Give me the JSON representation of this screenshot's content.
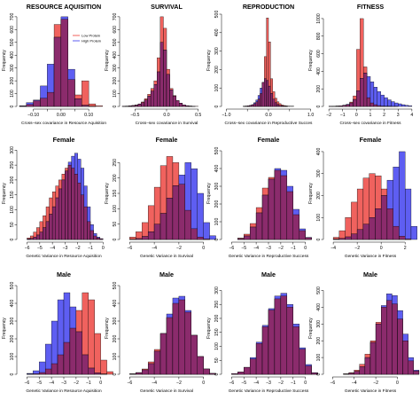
{
  "colors": {
    "low": "#f0625e",
    "high": "#5e5ef2",
    "overlap": "#8b2b6c"
  },
  "legend": {
    "low": "Low Protein",
    "high": "High Protein"
  },
  "chart_data": [
    {
      "type": "bar",
      "title": "RESOURCE AQUISITION",
      "xlabel": "Cross–sex covariance in Resource Aquisition",
      "ylabel": "Frequency",
      "xlim": [
        -0.15,
        0.17
      ],
      "xticks": [
        -0.1,
        -0.05,
        0.0,
        0.05,
        0.1
      ],
      "xtick_labels": [
        "−0.10",
        "",
        "0.00",
        "",
        "0.10"
      ],
      "ylim": [
        0,
        720
      ],
      "yticks": [
        0,
        100,
        200,
        300,
        400,
        500,
        600,
        700
      ],
      "bin_start": -0.15,
      "bin_width": 0.025,
      "series": [
        {
          "name": "Low Protein",
          "values": [
            3,
            15,
            45,
            65,
            110,
            640,
            680,
            210,
            90,
            200,
            20,
            5
          ]
        },
        {
          "name": "High Protein",
          "values": [
            5,
            30,
            50,
            160,
            330,
            540,
            700,
            290,
            60,
            10,
            2,
            0
          ]
        }
      ]
    },
    {
      "type": "bar",
      "title": "SURVIVAL",
      "xlabel": "Cross–sex covariance in Survival",
      "ylabel": "Frequency",
      "xlim": [
        -0.7,
        0.7
      ],
      "xticks": [
        -0.5,
        0,
        0.5
      ],
      "xtick_labels": [
        "−0.5",
        "0.0",
        "0.5"
      ],
      "ylim": [
        0,
        720
      ],
      "yticks": [
        0,
        100,
        200,
        300,
        400,
        500,
        600,
        700
      ],
      "bin_start": -0.7,
      "bin_width": 0.05,
      "series": [
        {
          "name": "Low Protein",
          "values": [
            2,
            3,
            5,
            8,
            12,
            20,
            35,
            60,
            95,
            140,
            200,
            380,
            700,
            610,
            290,
            140,
            85,
            45,
            25,
            12,
            6,
            3,
            2,
            1,
            0,
            0,
            0,
            0
          ]
        },
        {
          "name": "High Protein",
          "values": [
            1,
            2,
            4,
            6,
            10,
            18,
            30,
            50,
            80,
            120,
            170,
            270,
            500,
            440,
            250,
            130,
            80,
            45,
            25,
            12,
            6,
            3,
            1,
            0,
            0,
            0,
            0,
            0
          ]
        }
      ]
    },
    {
      "type": "bar",
      "title": "REPRODUCTION",
      "xlabel": "Cross–sex covariance in Reproductive Succes",
      "ylabel": "Frequency",
      "xlim": [
        -1.05,
        1.05
      ],
      "xticks": [
        -1,
        -0.5,
        0,
        0.5,
        1
      ],
      "xtick_labels": [
        "−1.0",
        "",
        "0.0",
        "",
        "1.0"
      ],
      "ylim": [
        0,
        500
      ],
      "yticks": [
        0,
        100,
        200,
        300,
        400,
        500
      ],
      "bin_start": -0.6,
      "bin_width": 0.05,
      "series": [
        {
          "name": "Low Protein",
          "values": [
            1,
            2,
            3,
            5,
            8,
            15,
            25,
            40,
            70,
            130,
            270,
            480,
            350,
            150,
            80,
            45,
            25,
            15,
            8,
            5,
            3,
            2,
            1,
            1
          ]
        },
        {
          "name": "High Protein",
          "values": [
            1,
            2,
            4,
            6,
            10,
            20,
            35,
            60,
            100,
            130,
            150,
            140,
            110,
            70,
            40,
            20,
            10,
            5,
            3,
            2,
            1,
            0,
            0,
            0
          ]
        }
      ]
    },
    {
      "type": "bar",
      "title": "FITNESS",
      "xlabel": "Cross–sex covariance in Fitness",
      "ylabel": "Frequency",
      "xlim": [
        -2.2,
        4.2
      ],
      "xticks": [
        -2,
        -1,
        0,
        1,
        2,
        3,
        4
      ],
      "xtick_labels": [
        "−2",
        "−1",
        "0",
        "1",
        "2",
        "3",
        "4"
      ],
      "ylim": [
        0,
        1050
      ],
      "yticks": [
        0,
        200,
        400,
        600,
        800,
        1000
      ],
      "bin_start": -2,
      "bin_width": 0.25,
      "series": [
        {
          "name": "Low Protein",
          "values": [
            2,
            3,
            5,
            8,
            12,
            20,
            50,
            120,
            650,
            1000,
            450,
            100,
            40,
            20,
            10,
            5,
            3,
            2,
            1,
            1,
            0,
            0,
            0,
            0
          ]
        },
        {
          "name": "High Protein",
          "values": [
            1,
            2,
            4,
            8,
            15,
            25,
            40,
            80,
            180,
            320,
            380,
            340,
            280,
            220,
            170,
            130,
            100,
            75,
            55,
            40,
            30,
            20,
            12,
            8
          ]
        }
      ]
    },
    {
      "type": "bar",
      "title": "Female",
      "xlabel": "Genetic Variance in Resource Aquisition",
      "ylabel": "Frequency",
      "xlim": [
        -6.6,
        0.4
      ],
      "xticks": [
        -6,
        -5,
        -4,
        -3,
        -2,
        -1,
        0
      ],
      "xtick_labels": [
        "−6",
        "−5",
        "−4",
        "−3",
        "−2",
        "−1",
        "0"
      ],
      "ylim": [
        0,
        310
      ],
      "yticks": [
        0,
        50,
        100,
        150,
        200,
        250,
        300
      ],
      "bin_start": -6,
      "bin_width": 0.25,
      "series": [
        {
          "name": "Low Protein",
          "values": [
            5,
            12,
            25,
            40,
            60,
            80,
            110,
            140,
            160,
            180,
            200,
            220,
            240,
            250,
            240,
            220,
            190,
            150,
            110,
            60,
            30,
            12,
            5,
            2
          ]
        },
        {
          "name": "High Protein",
          "values": [
            2,
            4,
            8,
            15,
            25,
            40,
            60,
            85,
            110,
            140,
            170,
            200,
            230,
            260,
            280,
            290,
            270,
            240,
            180,
            110,
            50,
            20,
            8,
            3
          ]
        }
      ]
    },
    {
      "type": "bar",
      "title": "Female",
      "xlabel": "Genetic Variance in Survival",
      "ylabel": "Frequency",
      "xlim": [
        -6.6,
        0.6
      ],
      "xticks": [
        -6,
        -4,
        -2,
        0
      ],
      "xtick_labels": [
        "−6",
        "−4",
        "−2",
        "0"
      ],
      "ylim": [
        0,
        300
      ],
      "yticks": [
        0,
        50,
        100,
        150,
        200,
        250
      ],
      "bin_start": -6,
      "bin_width": 0.5,
      "series": [
        {
          "name": "Low Protein",
          "values": [
            8,
            25,
            55,
            110,
            170,
            240,
            270,
            250,
            180,
            95,
            35,
            8,
            2,
            0
          ]
        },
        {
          "name": "High Protein",
          "values": [
            1,
            3,
            10,
            25,
            50,
            85,
            135,
            175,
            210,
            250,
            230,
            150,
            55,
            12
          ]
        }
      ]
    },
    {
      "type": "bar",
      "title": "Female",
      "xlabel": "Genetic Variance in Reproductive Success",
      "ylabel": "Frequency",
      "xlim": [
        -6.6,
        0.6
      ],
      "xticks": [
        -6,
        -5,
        -4,
        -3,
        -2,
        -1,
        0
      ],
      "xtick_labels": [
        "−6",
        "−5",
        "−4",
        "−3",
        "−2",
        "−1",
        "0"
      ],
      "ylim": [
        0,
        520
      ],
      "yticks": [
        0,
        100,
        200,
        300,
        400,
        500
      ],
      "bin_start": -5.5,
      "bin_width": 0.5,
      "series": [
        {
          "name": "Low Protein",
          "values": [
            8,
            30,
            90,
            180,
            290,
            350,
            390,
            360,
            270,
            140,
            50,
            10
          ]
        },
        {
          "name": "High Protein",
          "values": [
            5,
            20,
            70,
            150,
            250,
            340,
            400,
            390,
            300,
            170,
            60,
            12
          ]
        }
      ]
    },
    {
      "type": "bar",
      "title": "Female",
      "xlabel": "Genetic Variance in Fitness",
      "ylabel": "Frequency",
      "xlim": [
        -4.6,
        2.8
      ],
      "xticks": [
        -4,
        -2,
        0,
        2
      ],
      "xtick_labels": [
        "−4",
        "−2",
        "0",
        "2"
      ],
      "ylim": [
        0,
        420
      ],
      "yticks": [
        0,
        100,
        200,
        300,
        400
      ],
      "bin_start": -4,
      "bin_width": 0.5,
      "series": [
        {
          "name": "Low Protein",
          "values": [
            10,
            40,
            100,
            170,
            230,
            280,
            300,
            290,
            230,
            140,
            60,
            15,
            3,
            0
          ]
        },
        {
          "name": "High Protein",
          "values": [
            2,
            5,
            12,
            25,
            45,
            70,
            100,
            140,
            200,
            270,
            330,
            400,
            230,
            60
          ]
        }
      ]
    },
    {
      "type": "bar",
      "title": "Male",
      "xlabel": "Genetic Variance in Resource Aquisition",
      "ylabel": "Frequency",
      "xlim": [
        -6.6,
        0.6
      ],
      "xticks": [
        -6,
        -5,
        -4,
        -3,
        -2,
        -1,
        0
      ],
      "xtick_labels": [
        "−6",
        "−5",
        "−4",
        "−3",
        "−2",
        "−1",
        "0"
      ],
      "ylim": [
        0,
        520
      ],
      "yticks": [
        0,
        100,
        200,
        300,
        400,
        500
      ],
      "bin_start": -6,
      "bin_width": 0.5,
      "series": [
        {
          "name": "Low Protein",
          "values": [
            1,
            3,
            10,
            30,
            60,
            110,
            180,
            260,
            360,
            460,
            420,
            230,
            80,
            15
          ]
        },
        {
          "name": "High Protein",
          "values": [
            5,
            20,
            70,
            170,
            300,
            420,
            460,
            380,
            240,
            110,
            35,
            8,
            2,
            0
          ]
        }
      ]
    },
    {
      "type": "bar",
      "title": "Male",
      "xlabel": "Genetic Variance in Survival",
      "ylabel": "Frequency",
      "xlim": [
        -6.6,
        0.6
      ],
      "xticks": [
        -6,
        -4,
        -2,
        0
      ],
      "xtick_labels": [
        "−6",
        "−4",
        "−2",
        "0"
      ],
      "ylim": [
        0,
        520
      ],
      "yticks": [
        0,
        100,
        200,
        300,
        400,
        500
      ],
      "bin_start": -6,
      "bin_width": 0.5,
      "series": [
        {
          "name": "Low Protein",
          "values": [
            3,
            10,
            30,
            70,
            140,
            230,
            320,
            400,
            420,
            350,
            220,
            100,
            30,
            5
          ]
        },
        {
          "name": "High Protein",
          "values": [
            2,
            8,
            25,
            60,
            130,
            230,
            340,
            430,
            440,
            360,
            220,
            100,
            30,
            5
          ]
        }
      ]
    },
    {
      "type": "bar",
      "title": "Male",
      "xlabel": "Genetic Variance in Reproductive Success",
      "ylabel": "Frequency",
      "xlim": [
        -6.6,
        0.6
      ],
      "xticks": [
        -6,
        -5,
        -4,
        -3,
        -2,
        -1,
        0
      ],
      "xtick_labels": [
        "−6",
        "−5",
        "−4",
        "−3",
        "−2",
        "−1",
        "0"
      ],
      "ylim": [
        0,
        330
      ],
      "yticks": [
        0,
        50,
        100,
        150,
        200,
        250,
        300
      ],
      "bin_start": -6,
      "bin_width": 0.5,
      "series": [
        {
          "name": "Low Protein",
          "values": [
            2,
            8,
            25,
            55,
            110,
            170,
            230,
            270,
            280,
            240,
            170,
            90,
            30,
            5
          ]
        },
        {
          "name": "High Protein",
          "values": [
            2,
            8,
            25,
            60,
            115,
            175,
            235,
            280,
            290,
            250,
            180,
            95,
            35,
            6
          ]
        }
      ]
    },
    {
      "type": "bar",
      "title": "Male",
      "xlabel": "Genetic Variance in Fitness",
      "ylabel": "Frequency",
      "xlim": [
        -6.6,
        1.6
      ],
      "xticks": [
        -6,
        -4,
        -2,
        0
      ],
      "xtick_labels": [
        "−6",
        "−4",
        "−2",
        "0"
      ],
      "ylim": [
        0,
        550
      ],
      "yticks": [
        0,
        100,
        200,
        300,
        400,
        500
      ],
      "bin_start": -5,
      "bin_width": 0.5,
      "series": [
        {
          "name": "Low Protein",
          "values": [
            3,
            10,
            25,
            60,
            120,
            200,
            310,
            400,
            440,
            420,
            330,
            200,
            80,
            20
          ]
        },
        {
          "name": "High Protein",
          "values": [
            2,
            6,
            18,
            45,
            100,
            190,
            300,
            410,
            480,
            470,
            380,
            240,
            100,
            25
          ]
        }
      ]
    }
  ]
}
